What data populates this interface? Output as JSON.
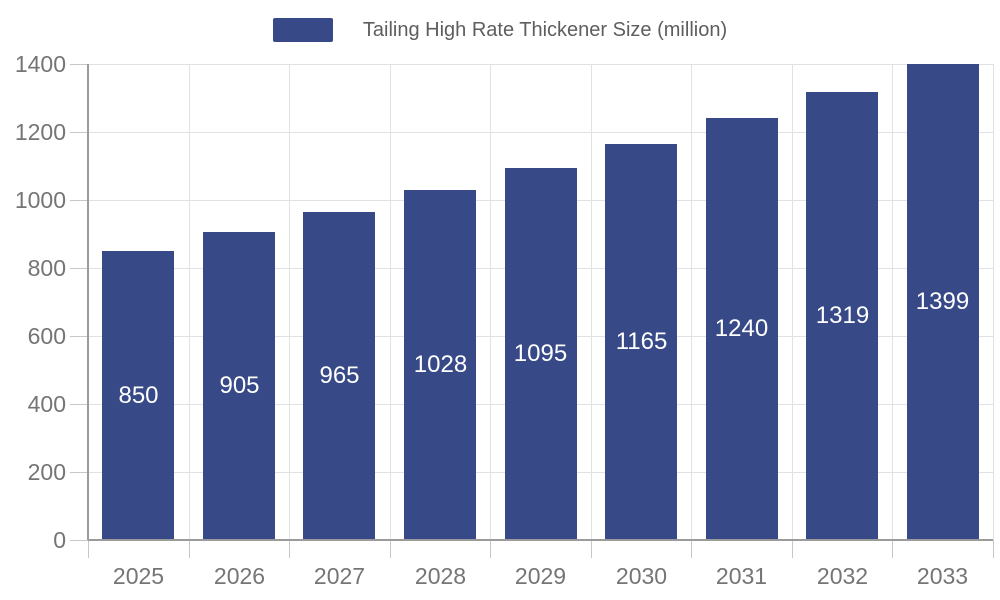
{
  "chart_data": {
    "type": "bar",
    "title": "Tailing High Rate Thickener Size (million)",
    "categories": [
      "2025",
      "2026",
      "2027",
      "2028",
      "2029",
      "2030",
      "2031",
      "2032",
      "2033"
    ],
    "series": [
      {
        "name": "Tailing High Rate Thickener Size (million)",
        "values": [
          850,
          905,
          965,
          1028,
          1095,
          1165,
          1240,
          1319,
          1399
        ]
      }
    ],
    "value_labels_shown": true,
    "ylim": [
      0,
      1400
    ],
    "yticks": [
      0,
      200,
      400,
      600,
      800,
      1000,
      1200,
      1400
    ],
    "xlabel": "",
    "ylabel": "",
    "grid": true,
    "legend_position": "top",
    "colors": {
      "bar": "#374a87",
      "value_label": "#ffffff",
      "axis": "#9b9b9b",
      "grid": "#e2e2e6",
      "tick": "#c6c6cc",
      "tick_label": "#757575",
      "legend_text": "#5e5e5e",
      "background": "#ffffff"
    }
  }
}
